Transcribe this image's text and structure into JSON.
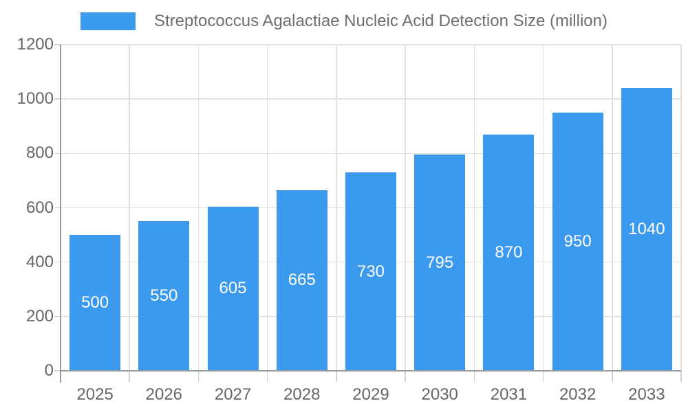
{
  "legend": {
    "label": "Streptococcus Agalactiae Nucleic Acid Detection Size (million)"
  },
  "chart_data": {
    "type": "bar",
    "title": "Streptococcus Agalactiae Nucleic Acid Detection Size (million)",
    "categories": [
      "2025",
      "2026",
      "2027",
      "2028",
      "2029",
      "2030",
      "2031",
      "2032",
      "2033"
    ],
    "values": [
      500,
      550,
      605,
      665,
      730,
      795,
      870,
      950,
      1040
    ],
    "xlabel": "",
    "ylabel": "",
    "ylim": [
      0,
      1200
    ],
    "ytick_step": 200,
    "yticks": [
      0,
      200,
      400,
      600,
      800,
      1000,
      1200
    ],
    "grid": true,
    "legend_position": "top-center",
    "value_labels": "inside-center",
    "colors": {
      "bar": "#3B99EE",
      "grid": "#E1E1E1",
      "axis": "#999999",
      "tick": "#CFCFCF",
      "tick_label": "#666666",
      "value_label": "#FFFFFF",
      "legend_text": "#6E6E6E",
      "background": "#FFFFFF"
    }
  }
}
